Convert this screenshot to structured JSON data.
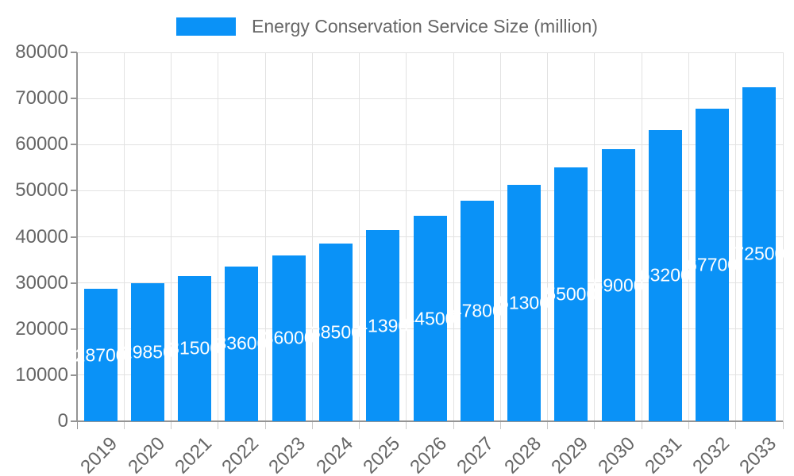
{
  "legend": {
    "label": "Energy Conservation Service Size (million)"
  },
  "chart_data": {
    "type": "bar",
    "title": "Energy Conservation Service Size (million)",
    "categories": [
      "2019",
      "2020",
      "2021",
      "2022",
      "2023",
      "2024",
      "2025",
      "2026",
      "2027",
      "2028",
      "2029",
      "2030",
      "2031",
      "2032",
      "2033"
    ],
    "values": [
      28700,
      29850,
      31500,
      33600,
      36000,
      38500,
      41390,
      44500,
      47800,
      51300,
      55000,
      59000,
      63200,
      67700,
      72500
    ],
    "series": [
      {
        "name": "Energy Conservation Service Size (million)",
        "values": [
          28700,
          29850,
          31500,
          33600,
          36000,
          38500,
          41390,
          44500,
          47800,
          51300,
          55000,
          59000,
          63200,
          67700,
          72500
        ]
      }
    ],
    "xlabel": "",
    "ylabel": "",
    "ylim": [
      0,
      80000
    ],
    "ytick_interval": 10000,
    "ytick_labels": [
      "0",
      "10000",
      "20000",
      "30000",
      "40000",
      "50000",
      "60000",
      "70000",
      "80000"
    ],
    "grid": true,
    "legend_position": "top-center",
    "x_tick_label_rotation_deg": -45,
    "bar_color": "#0a92f7",
    "bar_label_color": "#ffffff",
    "axis_text_color": "#666666",
    "gridline_color": "#e2e2e2",
    "axis_line_color": "#949494",
    "tick_color": "#c9c9c9",
    "background_color": "#ffffff"
  }
}
